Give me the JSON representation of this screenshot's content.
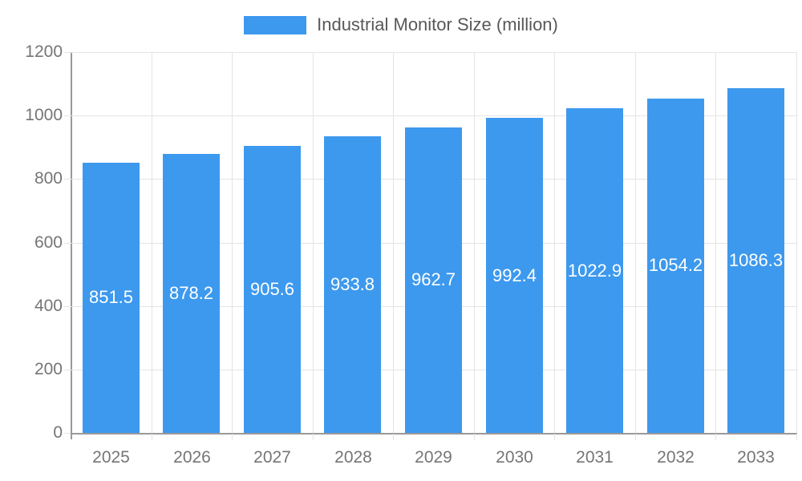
{
  "chart_data": {
    "type": "bar",
    "title": "Industrial Monitor Size (million)",
    "legend": {
      "label": "Industrial Monitor Size (million)",
      "position": "top-center"
    },
    "categories": [
      "2025",
      "2026",
      "2027",
      "2028",
      "2029",
      "2030",
      "2031",
      "2032",
      "2033"
    ],
    "series": [
      {
        "name": "Industrial Monitor Size (million)",
        "values": [
          851.5,
          878.2,
          905.6,
          933.8,
          962.7,
          992.4,
          1022.9,
          1054.2,
          1086.3
        ]
      }
    ],
    "value_labels": [
      "851.5",
      "878.2",
      "905.6",
      "933.8",
      "962.7",
      "992.4",
      "1022.9",
      "1054.2",
      "1086.3"
    ],
    "xlabel": "",
    "ylabel": "",
    "ylim": [
      0,
      1200
    ],
    "yticks": [
      0,
      200,
      400,
      600,
      800,
      1000,
      1200
    ],
    "grid": true,
    "colors": {
      "bar": "#3D99EE",
      "value_label": "#FFFFFF",
      "axis": "#999999",
      "grid": "#E4E4E4",
      "tick_label": "#757575",
      "legend_text": "#58585A"
    }
  }
}
